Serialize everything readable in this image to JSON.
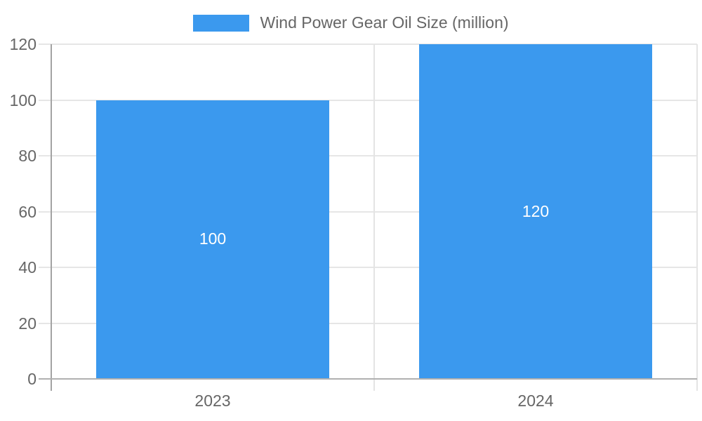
{
  "legend": {
    "label": "Wind Power Gear Oil Size (million)"
  },
  "colors": {
    "bar": "#3B99EE",
    "grid": "#E6E6E6",
    "boundary": "#E4E4E4",
    "y_axis_line": "#A3A3A3",
    "x_axis_line": "#B0B0B0",
    "tick_text": "#666666",
    "value_text": "#FFFFFF",
    "background": "#FFFFFF"
  },
  "chart_data": {
    "type": "bar",
    "title": "Wind Power Gear Oil Size (million)",
    "categories": [
      "2023",
      "2024"
    ],
    "series": [
      {
        "name": "Wind Power Gear Oil Size (million)",
        "values": [
          100,
          120
        ]
      }
    ],
    "value_labels": [
      "100",
      "120"
    ],
    "xlabel": "",
    "ylabel": "",
    "ylim": [
      0,
      120
    ],
    "yticks": [
      0,
      20,
      40,
      60,
      80,
      100,
      120
    ],
    "grid": true,
    "legend_position": "top-center",
    "value_labels_inside_bars": true
  }
}
